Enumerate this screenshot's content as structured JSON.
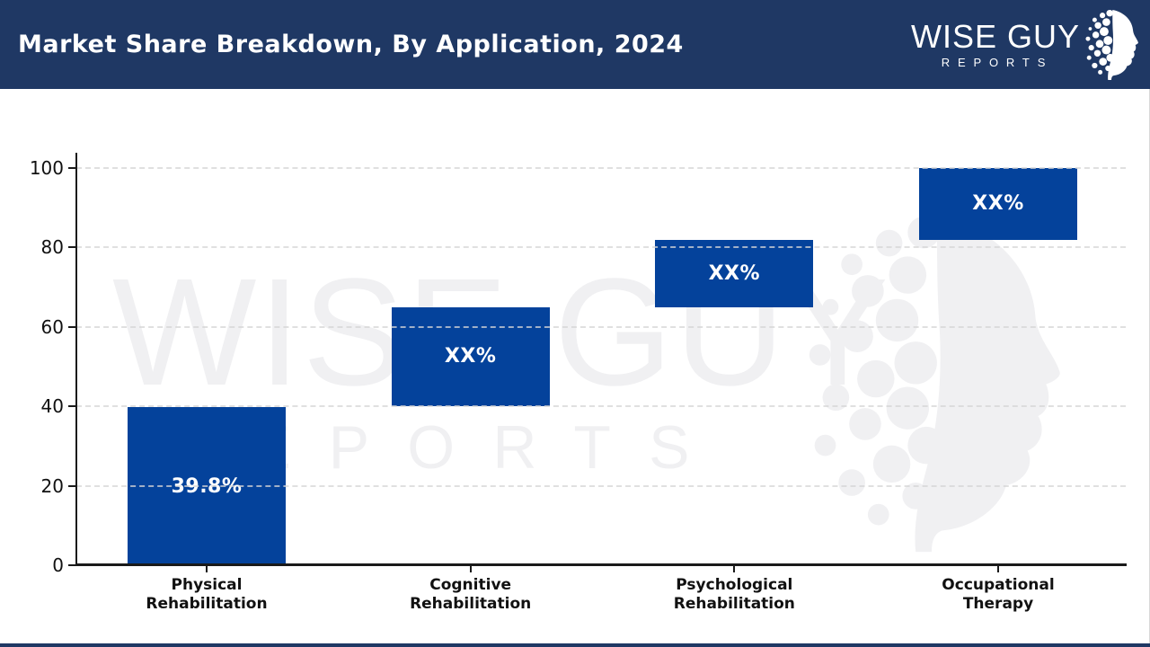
{
  "header": {
    "title": "Market Share Breakdown, By Application, 2024",
    "logo": {
      "line1": "WISE GUY",
      "line2": "REPORTS"
    }
  },
  "watermark": {
    "line1": "WISE GUY",
    "line2": "REPORTS"
  },
  "colors": {
    "header_bg": "#1F3864",
    "bar_fill": "#04429B",
    "grid": "rgba(214,214,214,0.75)",
    "axis": "#1A1A1A",
    "watermark": "#F0F0F2",
    "value_label": "#FFFFFF"
  },
  "chart_data": {
    "type": "bar",
    "subtype": "waterfall",
    "title": "Market Share Breakdown, By Application, 2024",
    "xlabel": "",
    "ylabel": "",
    "ylim": [
      0,
      100
    ],
    "yticks": [
      0,
      20,
      40,
      60,
      80,
      100
    ],
    "grid": "horizontal-dashed",
    "legend": "none",
    "categories": [
      "Physical\nRehabilitation",
      "Cognitive\nRehabilitation",
      "Psychological\nRehabilitation",
      "Occupational\nTherapy"
    ],
    "segments": [
      {
        "category": "Physical\nRehabilitation",
        "start": 0,
        "end": 39.8,
        "label": "39.8%"
      },
      {
        "category": "Cognitive\nRehabilitation",
        "start": 40,
        "end": 65,
        "label": "XX%"
      },
      {
        "category": "Psychological\nRehabilitation",
        "start": 65,
        "end": 82,
        "label": "XX%"
      },
      {
        "category": "Occupational\nTherapy",
        "start": 82,
        "end": 100,
        "label": "XX%"
      }
    ]
  }
}
